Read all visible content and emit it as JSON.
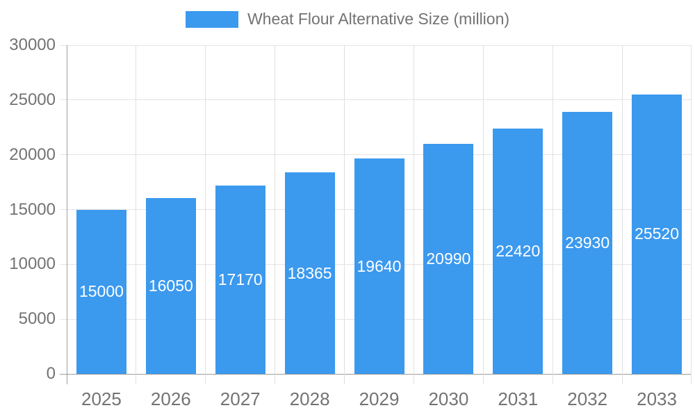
{
  "chart_data": {
    "type": "bar",
    "title": "",
    "legend": [
      "Wheat Flour Alternative Size (million)"
    ],
    "legend_position": "top",
    "categories": [
      "2025",
      "2026",
      "2027",
      "2028",
      "2029",
      "2030",
      "2031",
      "2032",
      "2033"
    ],
    "values": [
      15000,
      16050,
      17170,
      18365,
      19640,
      20990,
      22420,
      23930,
      25520
    ],
    "value_labels": [
      "15000",
      "16050",
      "17170",
      "18365",
      "19640",
      "20990",
      "22420",
      "23930",
      "25520"
    ],
    "xlabel": "",
    "ylabel": "",
    "ylim": [
      0,
      30000
    ],
    "yticks": [
      0,
      5000,
      10000,
      15000,
      20000,
      25000,
      30000
    ],
    "grid": true,
    "bar_color": "#3b99ee",
    "value_label_color": "#ffffff",
    "axis_text_color": "#737373",
    "gridline_color": "#e4e4e4",
    "axis_line_color": "#9c9c9c"
  }
}
